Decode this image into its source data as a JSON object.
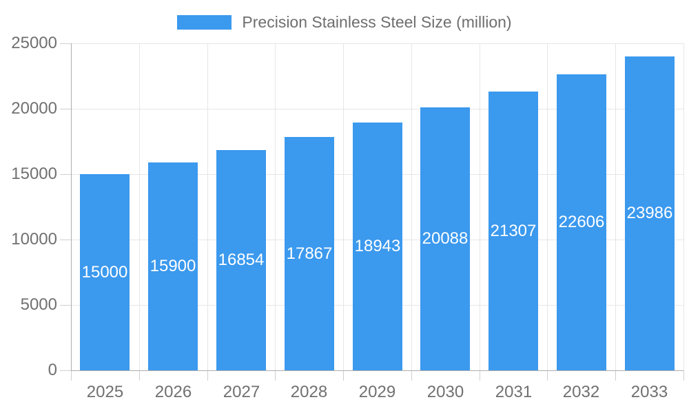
{
  "legend": {
    "label": "Precision Stainless Steel Size (million)"
  },
  "colors": {
    "bar": "#3B99EE",
    "grid": "#E6E6E6",
    "axis": "#ADADAD",
    "tick": "#CFCFCF",
    "axis_label_text": "#707070",
    "legend_text": "#6E6E6E",
    "value_label_text": "#FFFFFF",
    "background": "#FFFFFF"
  },
  "chart_data": {
    "type": "bar",
    "title": "Precision Stainless Steel Size (million)",
    "series": [
      {
        "name": "Precision Stainless Steel Size (million)",
        "values": [
          15000,
          15900,
          16854,
          17867,
          18943,
          20088,
          21307,
          22606,
          23986
        ]
      }
    ],
    "categories": [
      "2025",
      "2026",
      "2027",
      "2028",
      "2029",
      "2030",
      "2031",
      "2032",
      "2033"
    ],
    "value_labels": [
      15000,
      15900,
      16854,
      17867,
      18943,
      20088,
      21307,
      22606,
      23986
    ],
    "xlabel": "",
    "ylabel": "",
    "ylim": [
      0,
      25000
    ],
    "y_ticks": [
      0,
      5000,
      10000,
      15000,
      20000,
      25000
    ],
    "grid": true,
    "grid_x": true,
    "grid_y": true,
    "legend_position": "top",
    "value_label_style": "inside-center-white"
  }
}
